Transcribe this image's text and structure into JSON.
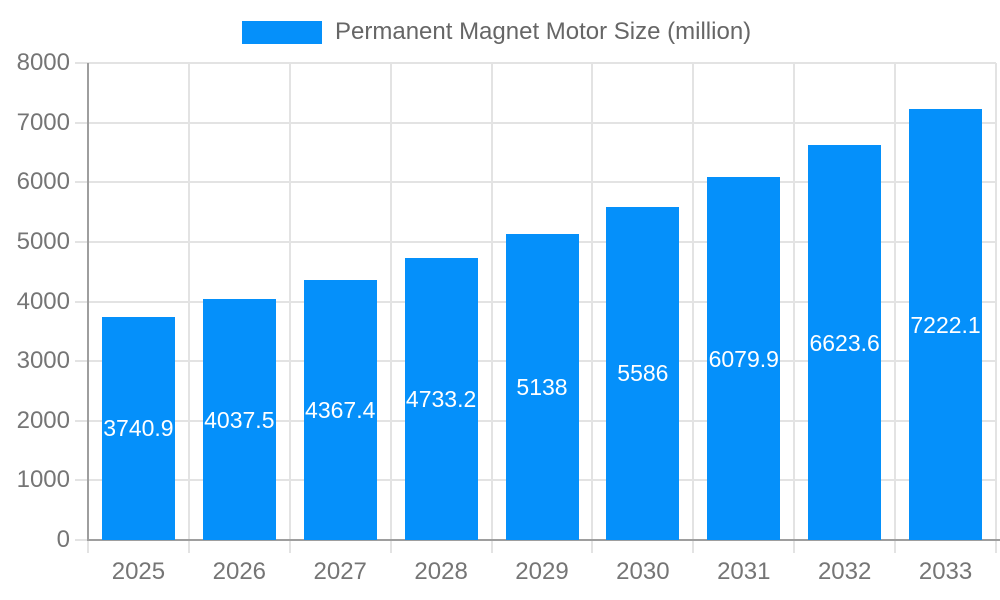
{
  "legend": {
    "label": "Permanent Magnet Motor Size (million)"
  },
  "colors": {
    "bar": "#0590FA",
    "grid": "#e3e3e3",
    "axis_line": "#9e9e9e",
    "axis_text": "#757575",
    "legend_text": "#666666",
    "bar_label_text": "#ffffff",
    "background": "#ffffff"
  },
  "chart_data": {
    "type": "bar",
    "title": "Permanent Magnet Motor Size (million)",
    "categories": [
      "2025",
      "2026",
      "2027",
      "2028",
      "2029",
      "2030",
      "2031",
      "2032",
      "2033"
    ],
    "values": [
      3740.9,
      4037.5,
      4367.4,
      4733.2,
      5138,
      5586,
      6079.9,
      6623.6,
      7222.1
    ],
    "bar_labels": [
      "3740.9",
      "4037.5",
      "4367.4",
      "4733.2",
      "5138",
      "5586",
      "6079.9",
      "6623.6",
      "7222.1"
    ],
    "xlabel": "",
    "ylabel": "",
    "ylim": [
      0,
      8000
    ],
    "y_ticks": [
      0,
      1000,
      2000,
      3000,
      4000,
      5000,
      6000,
      7000,
      8000
    ],
    "y_tick_labels": [
      "0",
      "1000",
      "2000",
      "3000",
      "4000",
      "5000",
      "6000",
      "7000",
      "8000"
    ],
    "grid": true,
    "legend_position": "top",
    "bar_label_position": "middle"
  }
}
